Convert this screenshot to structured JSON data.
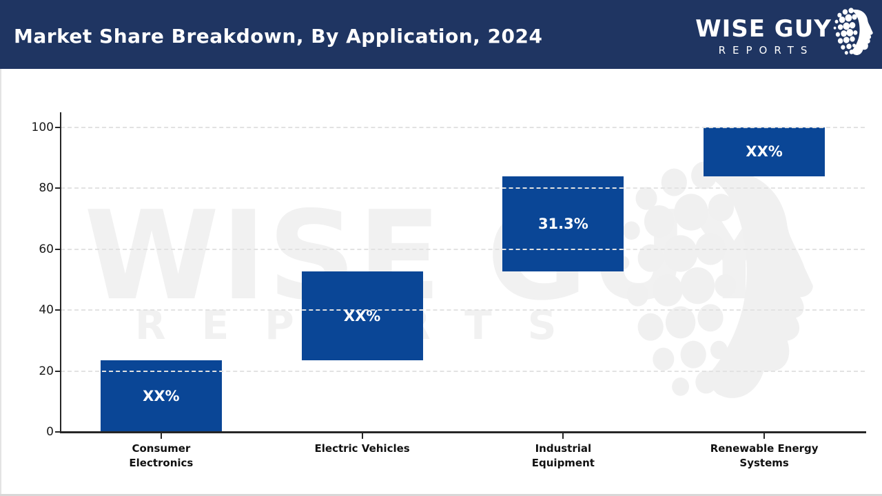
{
  "header": {
    "title": "Market Share Breakdown, By Application, 2024",
    "bg_color": "#1f3562",
    "logo": {
      "line1": "WISE GUY",
      "line2": "REPORTS"
    }
  },
  "watermark": {
    "line1": "WISE GUY",
    "line2": "REPORTS"
  },
  "chart_data": {
    "type": "bar",
    "subtype": "waterfall",
    "title": "Market Share Breakdown, By Application, 2024",
    "xlabel": "",
    "ylabel": "",
    "ylim": [
      0,
      100
    ],
    "yticks": [
      0,
      20,
      40,
      60,
      80,
      100
    ],
    "grid": true,
    "grid_style": "dashed",
    "bar_color": "#0a4696",
    "bar_label_color": "#ffffff",
    "axis_color": "#262626",
    "categories": [
      "Consumer\nElectronics",
      "Electric Vehicles",
      "Industrial\nEquipment",
      "Renewable Energy\nSystems"
    ],
    "segments": [
      {
        "category": "Consumer Electronics",
        "label": "XX%",
        "start": 0,
        "end": 23.5
      },
      {
        "category": "Electric Vehicles",
        "label": "XX%",
        "start": 23.5,
        "end": 52.7
      },
      {
        "category": "Industrial Equipment",
        "label": "31.3%",
        "start": 52.7,
        "end": 84.0
      },
      {
        "category": "Renewable Energy Systems",
        "label": "XX%",
        "start": 84.0,
        "end": 100.0
      }
    ]
  }
}
